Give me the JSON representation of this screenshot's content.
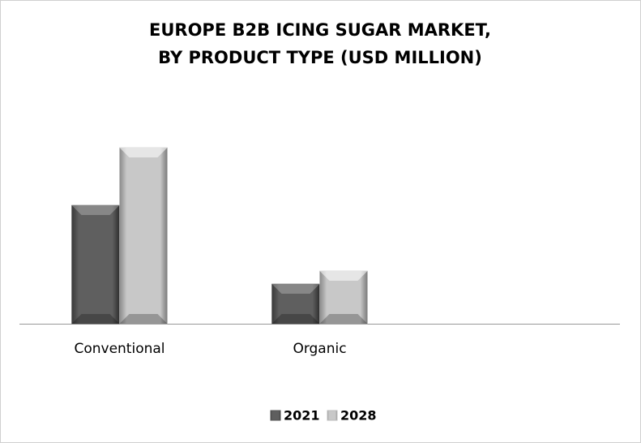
{
  "chart_data": {
    "type": "bar",
    "title": [
      "EUROPE B2B ICING SUGAR MARKET,",
      "BY PRODUCT TYPE (USD MILLION)"
    ],
    "categories": [
      "Conventional",
      "Organic"
    ],
    "series": [
      {
        "name": "2021",
        "color": "#555555",
        "values": [
          146,
          49
        ]
      },
      {
        "name": "2028",
        "color": "#bdbdbd",
        "values": [
          217,
          65
        ]
      }
    ],
    "legend": "bottom"
  }
}
